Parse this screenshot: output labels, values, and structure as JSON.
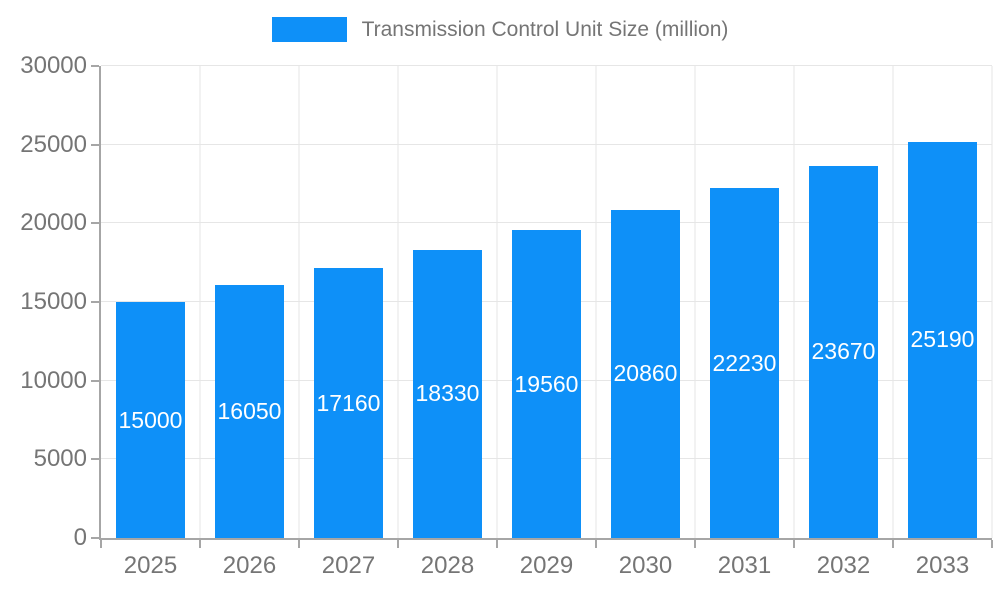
{
  "colors": {
    "bar": "#0e90f8",
    "grid": "#e6e6e6",
    "axis": "#a6a6a6",
    "text": "#757575",
    "bar-label": "#ffffff"
  },
  "chart_data": {
    "type": "bar",
    "title": "",
    "legend_label": "Transmission Control Unit Size (million)",
    "categories": [
      "2025",
      "2026",
      "2027",
      "2028",
      "2029",
      "2030",
      "2031",
      "2032",
      "2033"
    ],
    "values": [
      15000,
      16050,
      17160,
      18330,
      19560,
      20860,
      22230,
      23670,
      25190
    ],
    "xlabel": "",
    "ylabel": "",
    "ylim": [
      0,
      30000
    ],
    "yticks": [
      0,
      5000,
      10000,
      15000,
      20000,
      25000,
      30000
    ],
    "grid": true,
    "legend_position": "top-center",
    "bar_width_fraction": 0.7,
    "value_label_position": "inside-center"
  }
}
